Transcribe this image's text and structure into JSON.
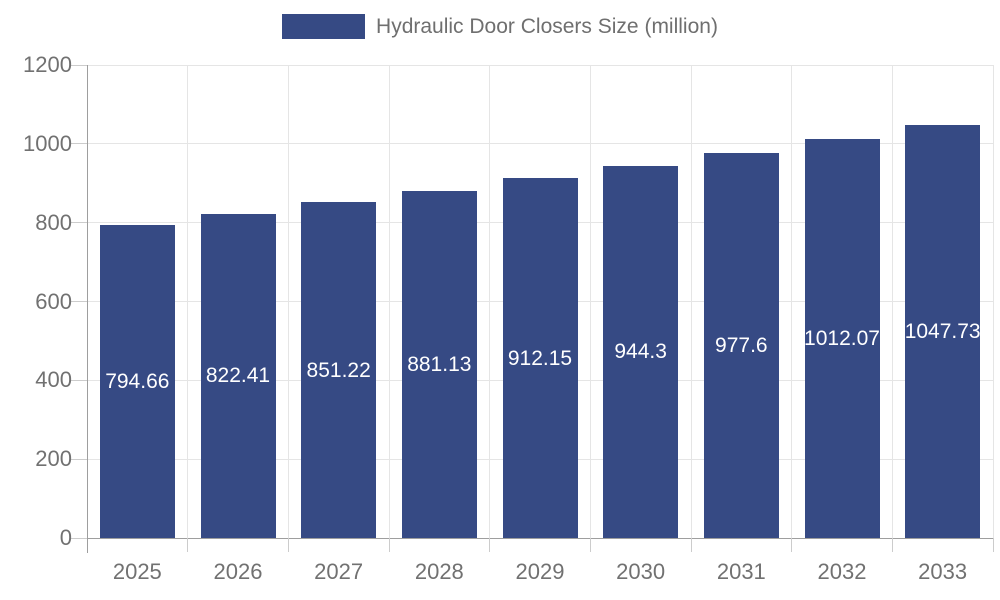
{
  "legend": {
    "items": [
      {
        "label": "Hydraulic Door Closers Size (million)",
        "color": "#364a84"
      }
    ]
  },
  "chart_data": {
    "type": "bar",
    "title": "Hydraulic Door Closers Size (million)",
    "categories": [
      "2025",
      "2026",
      "2027",
      "2028",
      "2029",
      "2030",
      "2031",
      "2032",
      "2033"
    ],
    "series": [
      {
        "name": "Hydraulic Door Closers Size (million)",
        "values": [
          794.66,
          822.41,
          851.22,
          881.13,
          912.15,
          944.3,
          977.6,
          1012.07,
          1047.73
        ],
        "value_labels": [
          "794.66",
          "822.41",
          "851.22",
          "881.13",
          "912.15",
          "944.3",
          "977.6",
          "1012.07",
          "1047.73"
        ],
        "color": "#364a84",
        "label_color": "#ffffff"
      }
    ],
    "xlabel": "",
    "ylabel": "",
    "ylim": [
      0,
      1200
    ],
    "yticks": [
      0,
      200,
      400,
      600,
      800,
      1000,
      1200
    ],
    "ytick_labels": [
      "0",
      "200",
      "400",
      "600",
      "800",
      "1000",
      "1200"
    ],
    "grid": true,
    "legend_position": "top",
    "value_label_position": "inside-center"
  },
  "colors": {
    "bar": "#364a84",
    "bar_value_text": "#ffffff",
    "axis_line": "#9e9e9e",
    "gridline": "#e5e5e5",
    "tick": "#cccccc",
    "tick_text": "#717171",
    "legend_text": "#6f6f6f",
    "background": "#ffffff"
  }
}
